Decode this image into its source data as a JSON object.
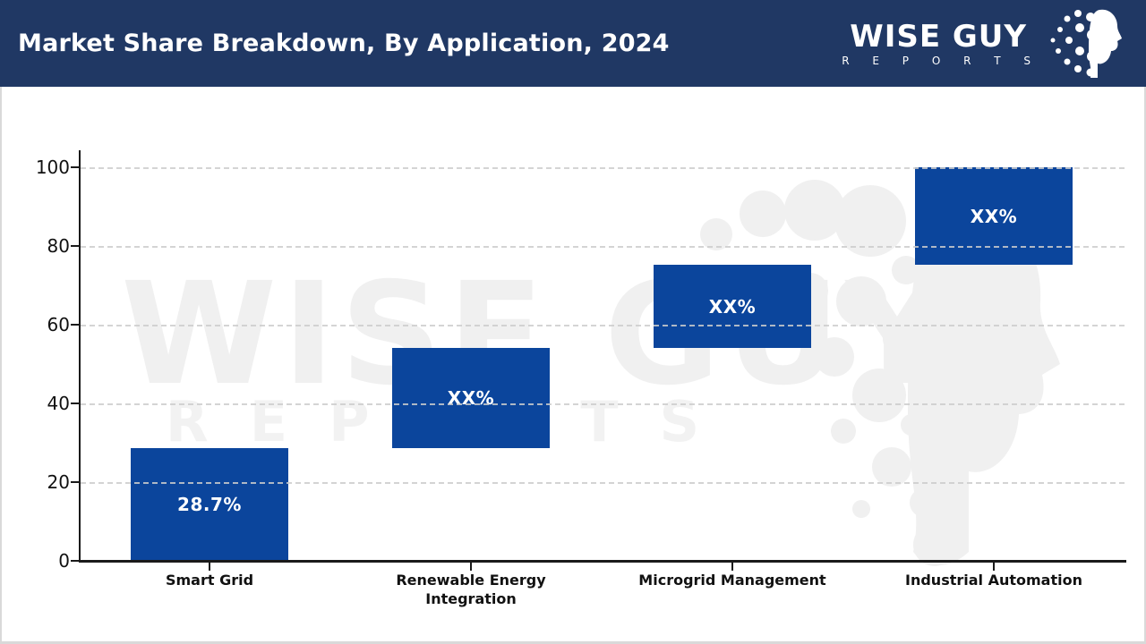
{
  "header": {
    "title": "Market Share Breakdown, By Application, 2024",
    "bg_color": "#203864",
    "logo": {
      "line1": "WISE GUY",
      "line2": "R E P O R T S"
    }
  },
  "watermark": {
    "line1": "WISE GUY",
    "line2": "REPORTS"
  },
  "chart_data": {
    "type": "bar",
    "subtype": "waterfall-stacked-breakdown",
    "title": "Market Share Breakdown, By Application, 2024",
    "categories": [
      "Smart Grid",
      "Renewable Energy Integration",
      "Microgrid Management",
      "Industrial Automation"
    ],
    "segments": [
      {
        "category": "Smart Grid",
        "start": 0,
        "end": 28.7,
        "value": 28.7,
        "label": "28.7%"
      },
      {
        "category": "Renewable Energy Integration",
        "start": 28.7,
        "end": 54.1,
        "value": 25.4,
        "label": "XX%"
      },
      {
        "category": "Microgrid Management",
        "start": 54.1,
        "end": 75.2,
        "value": 21.1,
        "label": "XX%"
      },
      {
        "category": "Industrial Automation",
        "start": 75.2,
        "end": 100,
        "value": 24.8,
        "label": "XX%"
      }
    ],
    "y_ticks": [
      0,
      20,
      40,
      60,
      80,
      100
    ],
    "ylim": [
      0,
      104
    ],
    "xlabel": "",
    "ylabel": "",
    "grid": "horizontal-dashed",
    "legend": "none",
    "bar_color": "#0b459c",
    "bar_label_color": "#ffffff",
    "axis_color": "#1a1a1a",
    "gridline_color": "#d0d0d0"
  }
}
